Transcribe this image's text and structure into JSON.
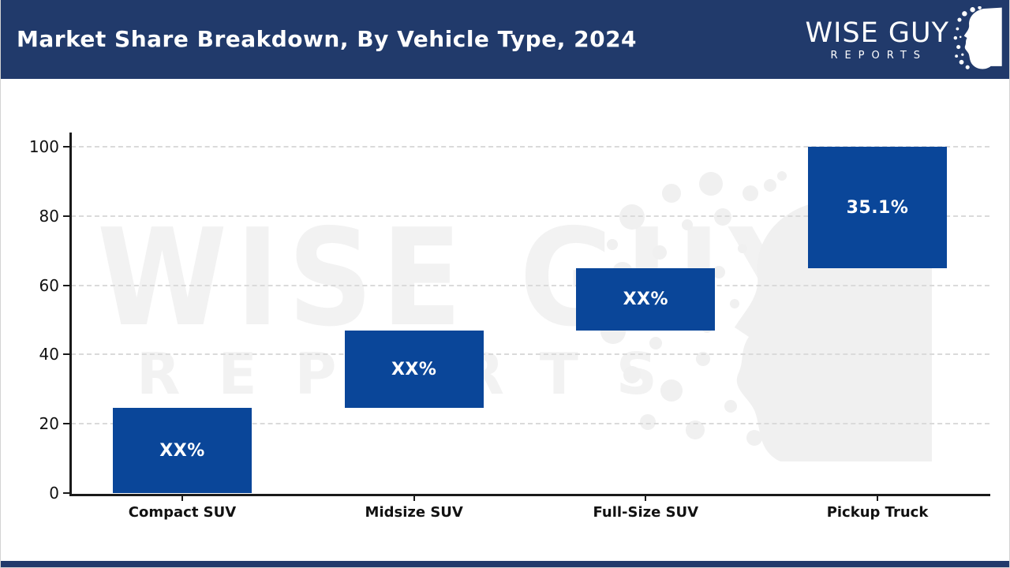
{
  "header": {
    "title": "Market Share Breakdown, By Vehicle Type, 2024",
    "bg_color": "#213a6b",
    "logo": {
      "line1": "WISE GUY",
      "line2": "REPORTS"
    }
  },
  "watermark": {
    "line1": "WISE GUY",
    "line2": "REPORTS"
  },
  "chart_data": {
    "type": "bar",
    "subtype": "waterfall",
    "title": "Market Share Breakdown, By Vehicle Type, 2024",
    "categories": [
      "Compact SUV",
      "Midsize SUV",
      "Full-Size SUV",
      "Pickup Truck"
    ],
    "segments": [
      {
        "category": "Compact SUV",
        "start": 0,
        "end": 24.5,
        "value": 24.5,
        "label": "XX%"
      },
      {
        "category": "Midsize SUV",
        "start": 24.5,
        "end": 46.9,
        "value": 22.4,
        "label": "XX%"
      },
      {
        "category": "Full-Size SUV",
        "start": 46.9,
        "end": 64.9,
        "value": 18.0,
        "label": "XX%"
      },
      {
        "category": "Pickup Truck",
        "start": 64.9,
        "end": 100.0,
        "value": 35.1,
        "label": "35.1%"
      }
    ],
    "xlabel": "",
    "ylabel": "",
    "ylim": [
      0,
      104
    ],
    "yticks": [
      0,
      20,
      40,
      60,
      80,
      100
    ],
    "grid": "horizontal-dashed",
    "legend": "none",
    "bar_color": "#0a4699",
    "bar_label_color": "#ffffff",
    "axis_color": "#1a1a1a",
    "gridline_color": "#dadada"
  }
}
